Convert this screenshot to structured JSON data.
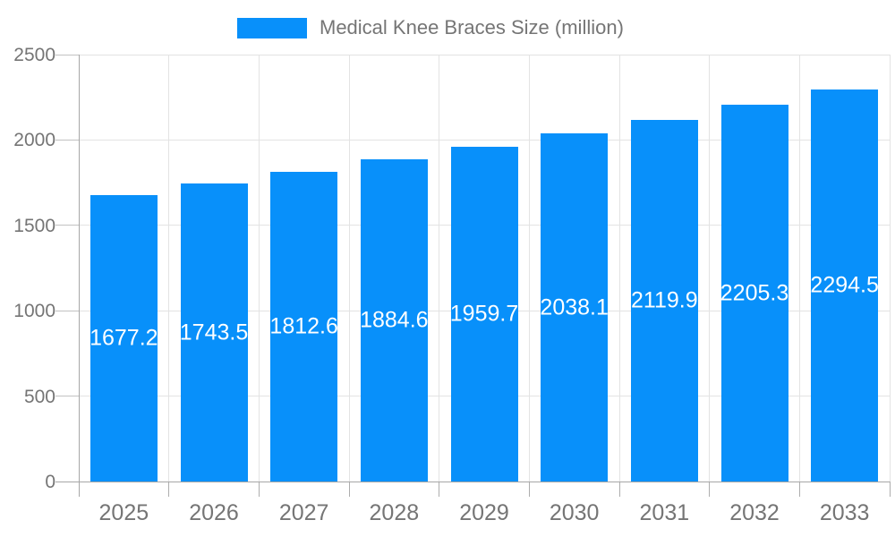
{
  "chart_data": {
    "type": "bar",
    "title": "Medical Knee Braces Size (million)",
    "legend": {
      "position": "top",
      "entries": [
        "Medical Knee Braces Size (million)"
      ]
    },
    "categories": [
      "2025",
      "2026",
      "2027",
      "2028",
      "2029",
      "2030",
      "2031",
      "2032",
      "2033"
    ],
    "series": [
      {
        "name": "Medical Knee Braces Size (million)",
        "values": [
          1677.2,
          1743.5,
          1812.6,
          1884.6,
          1959.7,
          2038.1,
          2119.9,
          2205.3,
          2294.5
        ],
        "color": "#0890fa"
      }
    ],
    "value_labels": [
      "1677.2",
      "1743.5",
      "1812.6",
      "1884.6",
      "1959.7",
      "2038.1",
      "2119.9",
      "2205.3",
      "2294.5"
    ],
    "xlabel": "",
    "ylabel": "",
    "ylim": [
      0,
      2500
    ],
    "yticks": [
      0,
      500,
      1000,
      1500,
      2000,
      2500
    ],
    "ytick_labels": [
      "0",
      "500",
      "1000",
      "1500",
      "2000",
      "2500"
    ],
    "grid": true,
    "colors": {
      "bar": "#0890fa",
      "value_label": "#ffffff",
      "axis_text": "#757575",
      "grid_line": "#e3e3e3",
      "axis_line": "#a6a6a6"
    }
  }
}
